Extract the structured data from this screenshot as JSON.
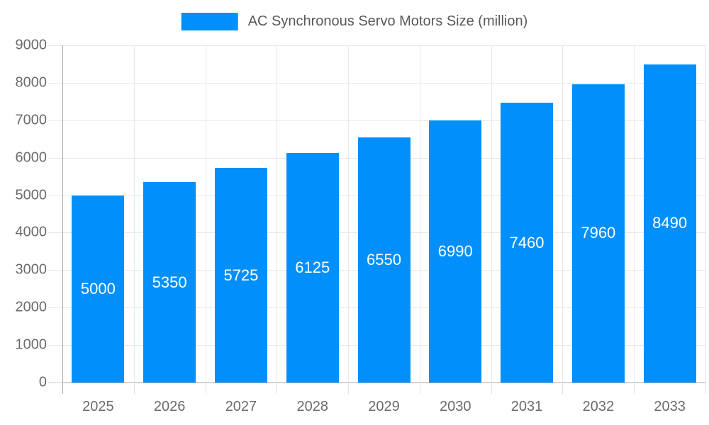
{
  "chart_data": {
    "type": "bar",
    "title": "AC Synchronous Servo Motors Size (million)",
    "categories": [
      "2025",
      "2026",
      "2027",
      "2028",
      "2029",
      "2030",
      "2031",
      "2032",
      "2033"
    ],
    "values": [
      5000,
      5350,
      5725,
      6125,
      6550,
      6990,
      7460,
      7960,
      8490
    ],
    "xlabel": "",
    "ylabel": "",
    "ylim": [
      0,
      9000
    ],
    "ytick_step": 1000,
    "grid": true,
    "legend_position": "top",
    "bar_labels_visible": true,
    "colors": {
      "bar": "#008FFB",
      "bar_label": "#ffffff",
      "grid": "#e7e7e7",
      "axis_line": "#a8a8a8",
      "zero_tick": "#c9c9c9",
      "x_tick": "#e0e0e0",
      "axis_label": "#6b6b6b",
      "legend_label": "#595959",
      "background": "#ffffff"
    }
  }
}
